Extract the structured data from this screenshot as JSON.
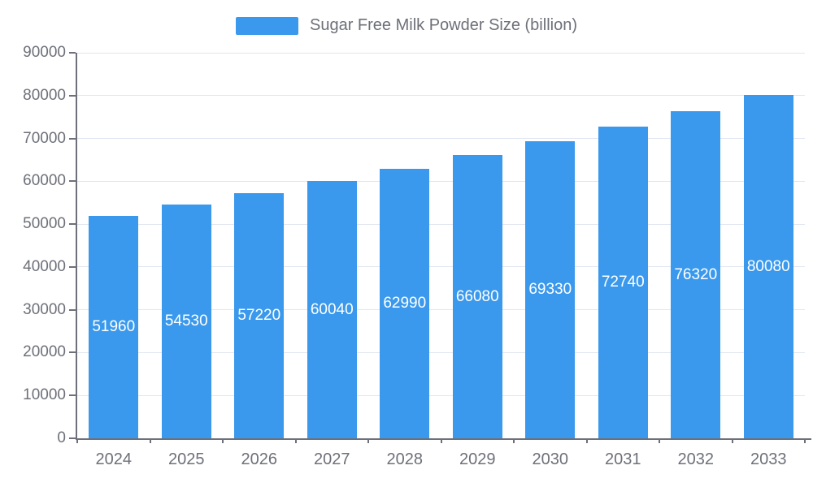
{
  "legend": {
    "label": "Sugar Free Milk Powder Size (billion)"
  },
  "colors": {
    "bar": "#3A99EC",
    "grid": "#E0E6F1",
    "axis": "#6E7079",
    "tick_text": "#6E7079",
    "bar_label": "#FFFFFF",
    "background": "#FFFFFF"
  },
  "chart_data": {
    "type": "bar",
    "title": "Sugar Free Milk Powder Size (billion)",
    "categories": [
      "2024",
      "2025",
      "2026",
      "2027",
      "2028",
      "2029",
      "2030",
      "2031",
      "2032",
      "2033"
    ],
    "values": [
      51960,
      54530,
      57220,
      60040,
      62990,
      66080,
      69330,
      72740,
      76320,
      80080
    ],
    "xlabel": "",
    "ylabel": "",
    "ylim": [
      0,
      90000
    ],
    "ytick_step": 10000,
    "ytick_labels": [
      "0",
      "10000",
      "20000",
      "30000",
      "40000",
      "50000",
      "60000",
      "70000",
      "80000",
      "90000"
    ],
    "grid": true,
    "legend_position": "top-center",
    "bar_value_labels_inside": true
  }
}
